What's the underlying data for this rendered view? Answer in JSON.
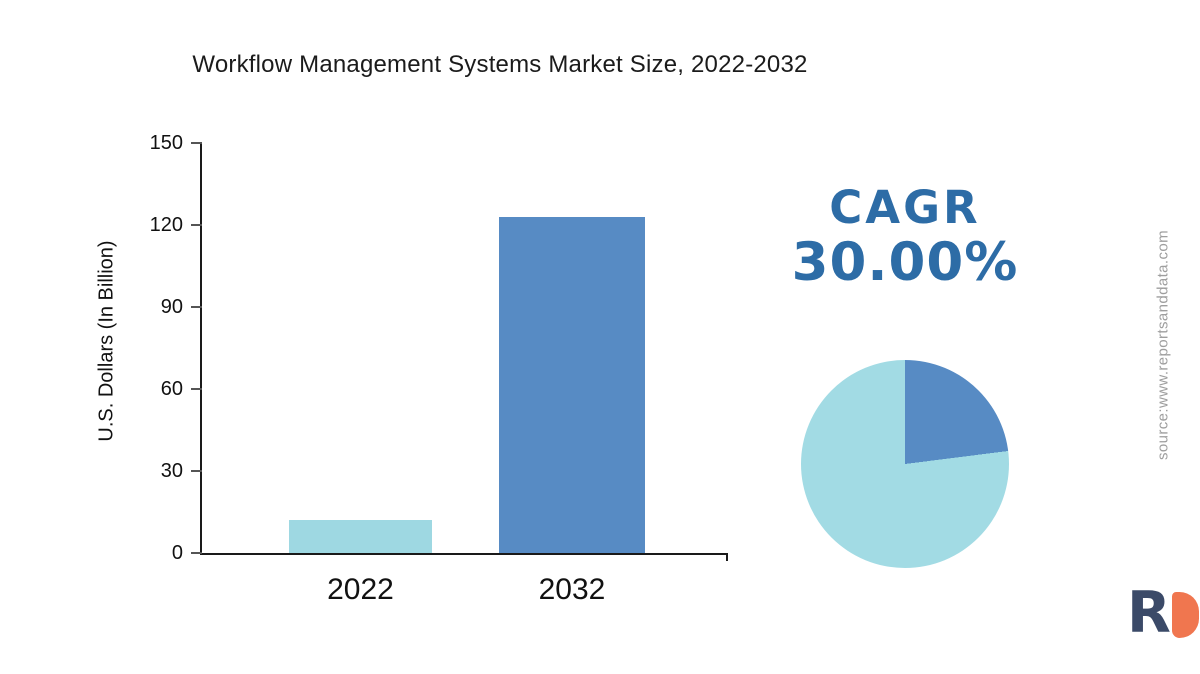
{
  "title": "Workflow Management Systems Market Size, 2022-2032",
  "cagr": {
    "label": "CAGR",
    "value": "30.00%"
  },
  "source_note": "source:www.reportsanddata.com",
  "logo": {
    "letter": "R"
  },
  "colors": {
    "bar_2022": "#9ed8e2",
    "bar_2032": "#578bc4",
    "cagr_text": "#2d6ca6",
    "pie_highlight": "#578bc4",
    "pie_remainder": "#a2dbe4",
    "source_text": "#9e9e9e",
    "logo_navy": "#3b4a68",
    "logo_orange": "#f0764f"
  },
  "chart_data": [
    {
      "type": "bar",
      "title": "Workflow Management Systems Market Size, 2022-2032",
      "categories": [
        "2022",
        "2032"
      ],
      "values": [
        12,
        123
      ],
      "xlabel": "",
      "ylabel": "U.S. Dollars (In Billion)",
      "ylim": [
        0,
        150
      ],
      "yticks": [
        0,
        30,
        60,
        90,
        120,
        150
      ],
      "grid": false,
      "legend": false,
      "bar_colors": [
        "#9ed8e2",
        "#578bc4"
      ]
    },
    {
      "type": "pie",
      "title": "CAGR highlight pie",
      "annotation": "CAGR 30.00%",
      "start_angle": "12 o'clock, clockwise",
      "slices": [
        {
          "name": "highlight",
          "value": 23,
          "color": "#578bc4"
        },
        {
          "name": "remainder",
          "value": 77,
          "color": "#a2dbe4"
        }
      ]
    }
  ]
}
